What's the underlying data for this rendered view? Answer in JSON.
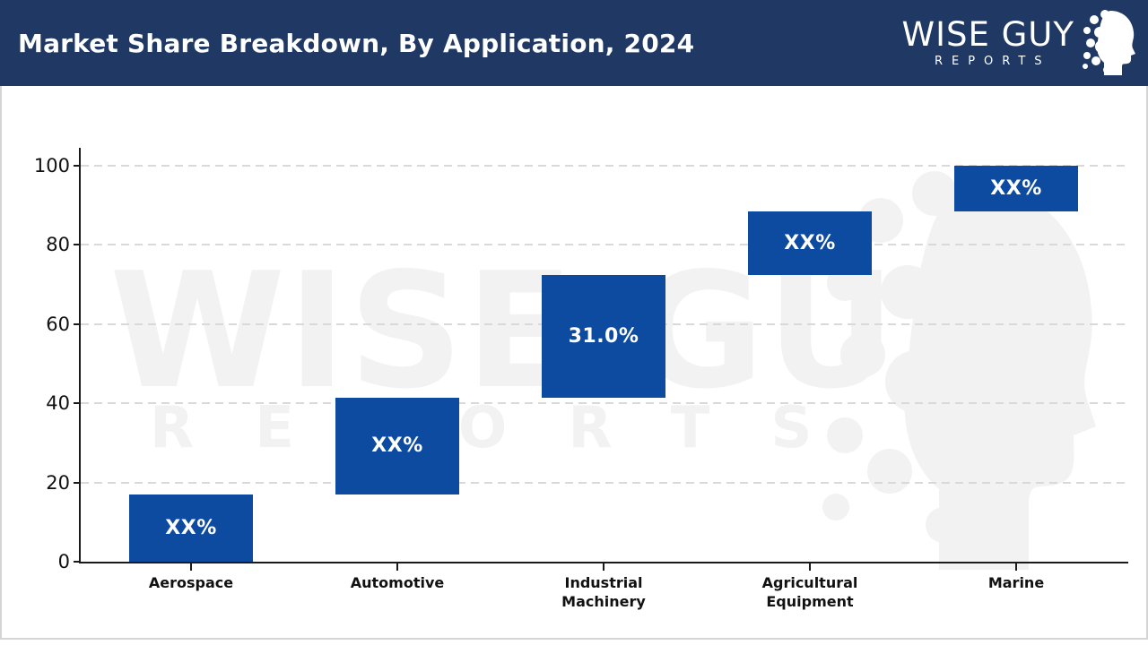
{
  "header": {
    "title": "Market Share Breakdown, By Application, 2024",
    "logo": {
      "line1": "WISE GUY",
      "line2": "REPORTS"
    }
  },
  "watermark": {
    "line1": "WISE GUY",
    "line2": "REPORTS"
  },
  "colors": {
    "header_bg": "#1f3864",
    "bar": "#0d4ba1",
    "grid": "#d9d9d9",
    "axis": "#1a1a1a",
    "watermark": "#f2f2f2"
  },
  "chart_data": {
    "type": "bar",
    "subtype": "waterfall",
    "title": "Market Share Breakdown, By Application, 2024",
    "categories": [
      "Aerospace",
      "Automotive",
      "Industrial\nMachinery",
      "Agricultural\nEquipment",
      "Marine"
    ],
    "series": [
      {
        "name": "Market share (%)",
        "segments": [
          {
            "category": "Aerospace",
            "start": 0,
            "end": 17,
            "label": "XX%"
          },
          {
            "category": "Automotive",
            "start": 17,
            "end": 41.5,
            "label": "XX%"
          },
          {
            "category": "Industrial Machinery",
            "start": 41.5,
            "end": 72.5,
            "label": "31.0%"
          },
          {
            "category": "Agricultural Equipment",
            "start": 72.5,
            "end": 88.5,
            "label": "XX%"
          },
          {
            "category": "Marine",
            "start": 88.5,
            "end": 100,
            "label": "XX%"
          }
        ]
      }
    ],
    "ylim": [
      0,
      100
    ],
    "yticks": [
      0,
      20,
      40,
      60,
      80,
      100
    ],
    "xlabel": "",
    "ylabel": "",
    "grid": "horizontal-dashed",
    "legend": "none"
  }
}
